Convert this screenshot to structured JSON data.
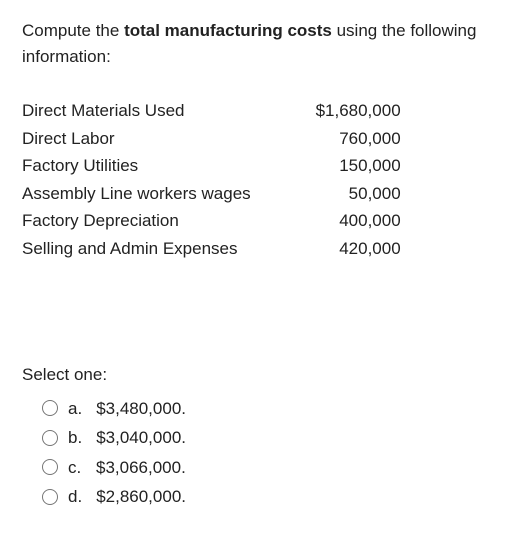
{
  "question": {
    "prefix": "Compute the ",
    "bold": "total manufacturing costs",
    "suffix": " using the following information:"
  },
  "data_rows": [
    {
      "label": "Direct Materials Used",
      "value": "$1,680,000"
    },
    {
      "label": "Direct Labor",
      "value": "760,000"
    },
    {
      "label": "Factory Utilities",
      "value": "150,000"
    },
    {
      "label": "Assembly Line workers wages",
      "value": "50,000"
    },
    {
      "label": "Factory Depreciation",
      "value": "400,000"
    },
    {
      "label": "Selling and Admin Expenses",
      "value": "420,000"
    }
  ],
  "select_label": "Select one:",
  "options": [
    {
      "letter": "a.",
      "text": "$3,480,000."
    },
    {
      "letter": "b.",
      "text": "$3,040,000."
    },
    {
      "letter": "c.",
      "text": "$3,066,000."
    },
    {
      "letter": "d.",
      "text": "$2,860,000."
    }
  ],
  "colors": {
    "text": "#222222",
    "background": "#ffffff"
  }
}
